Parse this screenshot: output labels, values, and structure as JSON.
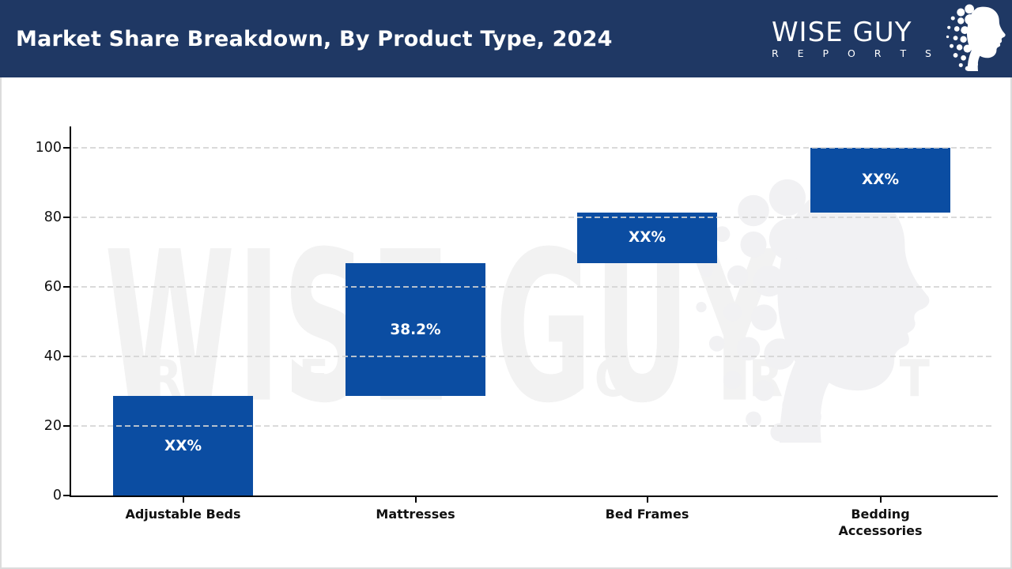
{
  "header": {
    "title": "Market Share Breakdown, By Product Type, 2024",
    "background": "#1f3864",
    "logo": {
      "wordmark": "WISE GUY",
      "subtext": "R E P O R T S",
      "face_icon": "dotted-head-profile"
    }
  },
  "watermark": {
    "wordmark": "WISE GUY",
    "subtext": "R E P O R T S",
    "face_icon": "dotted-head-profile",
    "color": "#f2f2f2"
  },
  "chart_data": {
    "type": "bar",
    "variant": "waterfall",
    "title": "Market Share Breakdown, By Product Type, 2024",
    "categories": [
      "Adjustable Beds",
      "Mattresses",
      "Bed Frames",
      "Bedding Accessories"
    ],
    "category_display": [
      "Adjustable Beds",
      "Mattresses",
      "Bed Frames",
      "Bedding\nAccessories"
    ],
    "segments": [
      {
        "category": "Adjustable Beds",
        "start": 0,
        "end": 28.6,
        "value": 28.6,
        "label": "XX%"
      },
      {
        "category": "Mattresses",
        "start": 28.6,
        "end": 66.8,
        "value": 38.2,
        "label": "38.2%"
      },
      {
        "category": "Bed Frames",
        "start": 66.8,
        "end": 81.4,
        "value": 14.6,
        "label": "XX%"
      },
      {
        "category": "Bedding Accessories",
        "start": 81.4,
        "end": 100,
        "value": 18.6,
        "label": "XX%"
      }
    ],
    "xlabel": "",
    "ylabel": "",
    "yticks": [
      0,
      20,
      40,
      60,
      80,
      100
    ],
    "ylim": [
      0,
      106
    ],
    "grid": {
      "axis": "y",
      "style": "dashed",
      "color": "#d9d9d9",
      "over_bars": true
    },
    "legend": "none",
    "bar_color": "#0b4da2",
    "bar_label_color": "#ffffff",
    "axis_color": "#000000",
    "tick_label_color": "#111111"
  }
}
